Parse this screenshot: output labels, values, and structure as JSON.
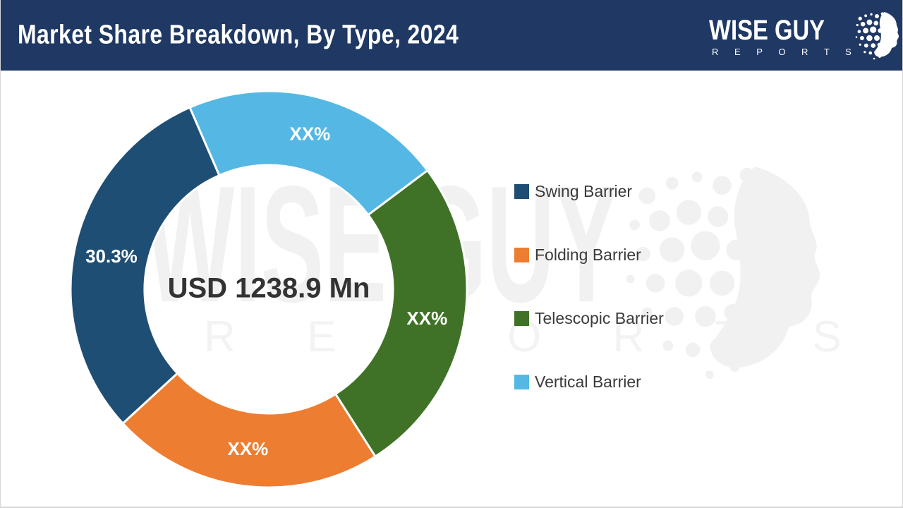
{
  "header": {
    "title": "Market Share Breakdown, By Type, 2024",
    "bg_color": "#1f3864",
    "logo": {
      "line1": "WISE GUY",
      "line2": "R E P O R T S"
    }
  },
  "watermark": {
    "line1": "WISE GUY",
    "line2": "R E P O R T S"
  },
  "chart_data": {
    "type": "donut",
    "title": "Market Share Breakdown, By Type, 2024",
    "center_label": "USD 1238.9 Mn",
    "start_angle_deg": 113.5,
    "direction": "clockwise",
    "legend_position": "right",
    "segments": [
      {
        "name": "Vertical Barrier",
        "display_label": "XX%",
        "value_pct_est": 21.3,
        "color": "#55b8e4"
      },
      {
        "name": "Telescopic Barrier",
        "display_label": "XX%",
        "value_pct_est": 26.2,
        "color": "#3f7226"
      },
      {
        "name": "Folding Barrier",
        "display_label": "XX%",
        "value_pct_est": 22.2,
        "color": "#ed7d31"
      },
      {
        "name": "Swing Barrier",
        "display_label": "30.3%",
        "value_pct_est": 30.3,
        "color": "#1f4e74"
      }
    ]
  },
  "legend": {
    "items": [
      {
        "label": "Swing Barrier",
        "color": "#1f4e74"
      },
      {
        "label": "Folding Barrier",
        "color": "#ed7d31"
      },
      {
        "label": "Telescopic Barrier",
        "color": "#3f7226"
      },
      {
        "label": "Vertical Barrier",
        "color": "#55b8e4"
      }
    ]
  },
  "colors": {
    "header_bg": "#1f3864",
    "text_dark": "#333333",
    "watermark": "#f1f1f1",
    "border": "#d6d6d6"
  }
}
